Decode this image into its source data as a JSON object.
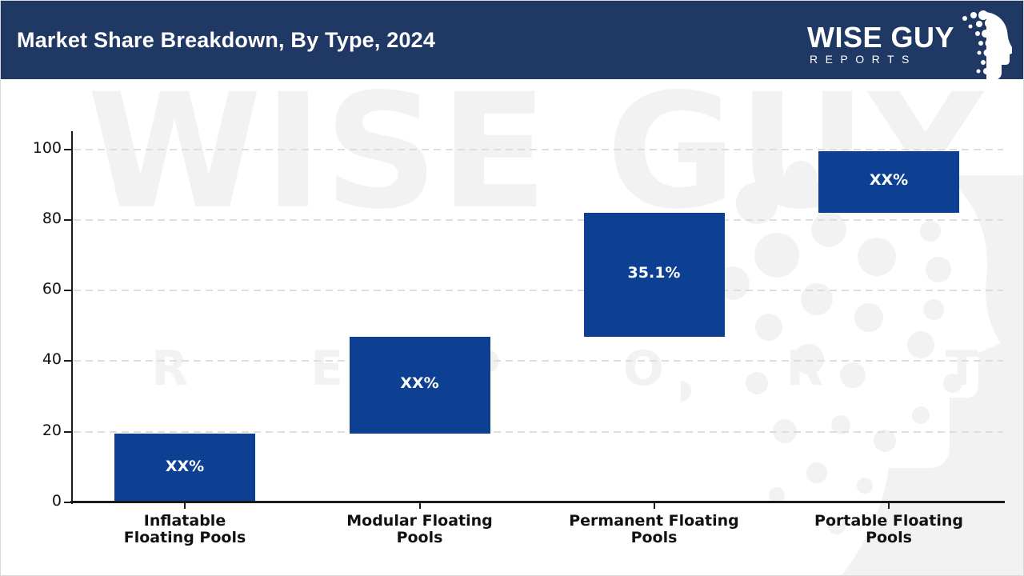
{
  "header": {
    "title": "Market Share Breakdown, By Type, 2024",
    "bg_color": "#1f3864",
    "brand": {
      "line1": "WISE GUY",
      "line2": "REPORTS"
    }
  },
  "watermark": {
    "line1": "WISE GUY",
    "line2": "R E P O R T S"
  },
  "chart_data": {
    "type": "bar",
    "subtype": "floating-waterfall",
    "title": "Market Share Breakdown, By Type, 2024",
    "categories": [
      "Inflatable\nFloating Pools",
      "Modular Floating\nPools",
      "Permanent Floating\nPools",
      "Portable Floating\nPools"
    ],
    "series": [
      {
        "name": "Market Share %",
        "segments": [
          {
            "category": "Inflatable Floating Pools",
            "start": 0,
            "end": 19.5,
            "label": "XX%"
          },
          {
            "category": "Modular Floating Pools",
            "start": 19.5,
            "end": 46.9,
            "label": "XX%"
          },
          {
            "category": "Permanent Floating Pools",
            "start": 46.9,
            "end": 82.0,
            "label": "35.1%"
          },
          {
            "category": "Portable Floating Pools",
            "start": 82.0,
            "end": 99.5,
            "label": "XX%"
          }
        ]
      }
    ],
    "xlabel": "",
    "ylabel": "",
    "yticks": [
      0,
      20,
      40,
      60,
      80,
      100
    ],
    "ylim": [
      0,
      105
    ],
    "grid": "horizontal-dashed",
    "legend": "none",
    "bar_color": "#0d3f92",
    "bar_label_color": "#ffffff"
  }
}
